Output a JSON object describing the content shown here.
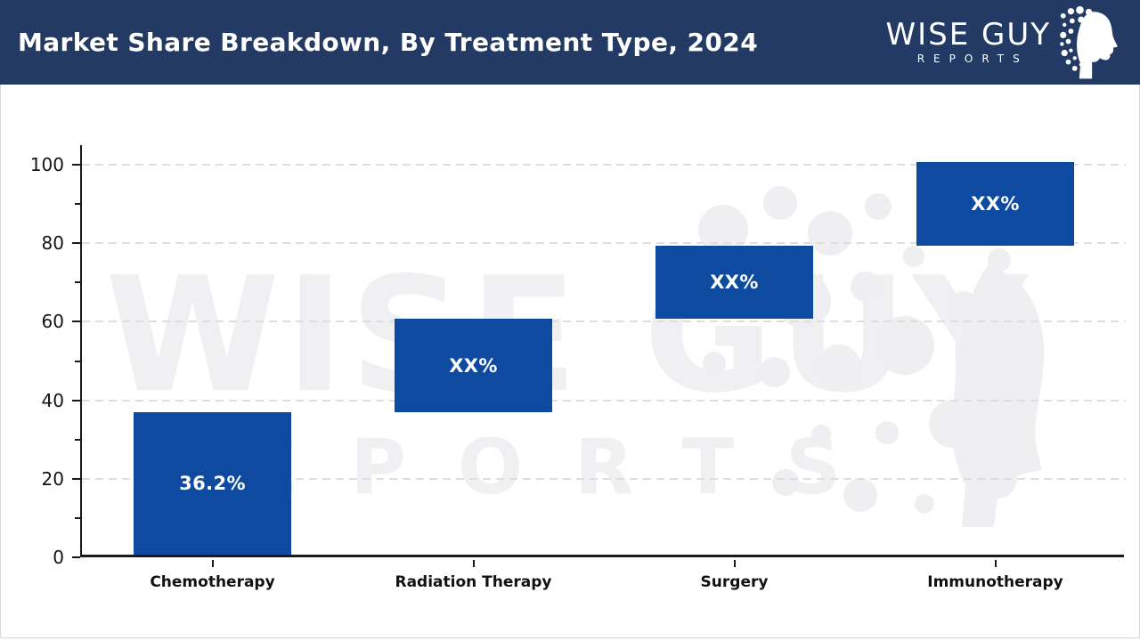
{
  "header": {
    "title": "Market Share Breakdown, By Treatment Type, 2024",
    "logo": {
      "line1": "WISE GUY",
      "line2": "REPORTS"
    }
  },
  "watermark": {
    "line1": "WISE GUY",
    "line2": "REPORTS"
  },
  "chart_data": {
    "type": "bar",
    "subtype": "waterfall-stacked-progression",
    "title": "Market Share Breakdown, By Treatment Type, 2024",
    "categories": [
      "Chemotherapy",
      "Radiation Therapy",
      "Surgery",
      "Immunotherapy"
    ],
    "segments": [
      {
        "category": "Chemotherapy",
        "start": 0,
        "end": 36.2,
        "label": "36.2%"
      },
      {
        "category": "Radiation Therapy",
        "start": 36.2,
        "end": 60,
        "label": "XX%"
      },
      {
        "category": "Surgery",
        "start": 60,
        "end": 78.6,
        "label": "XX%"
      },
      {
        "category": "Immunotherapy",
        "start": 78.6,
        "end": 100,
        "label": "XX%"
      }
    ],
    "xlabel": "",
    "ylabel": "",
    "ylim": [
      0,
      105
    ],
    "yticks": [
      0,
      20,
      40,
      60,
      80,
      100
    ],
    "minor_ytick_step": 10,
    "grid": "horizontal dashed",
    "legend": "none",
    "bar_color": "#0D4AA0",
    "bar_label_color": "#FFFFFF"
  },
  "colors": {
    "header_bg": "#233A64",
    "bar": "#0D4AA0",
    "grid": "#DEDEDE",
    "axis": "#1A1A1A",
    "watermark": "#F0F0F3",
    "frame": "#D8D8D8"
  }
}
